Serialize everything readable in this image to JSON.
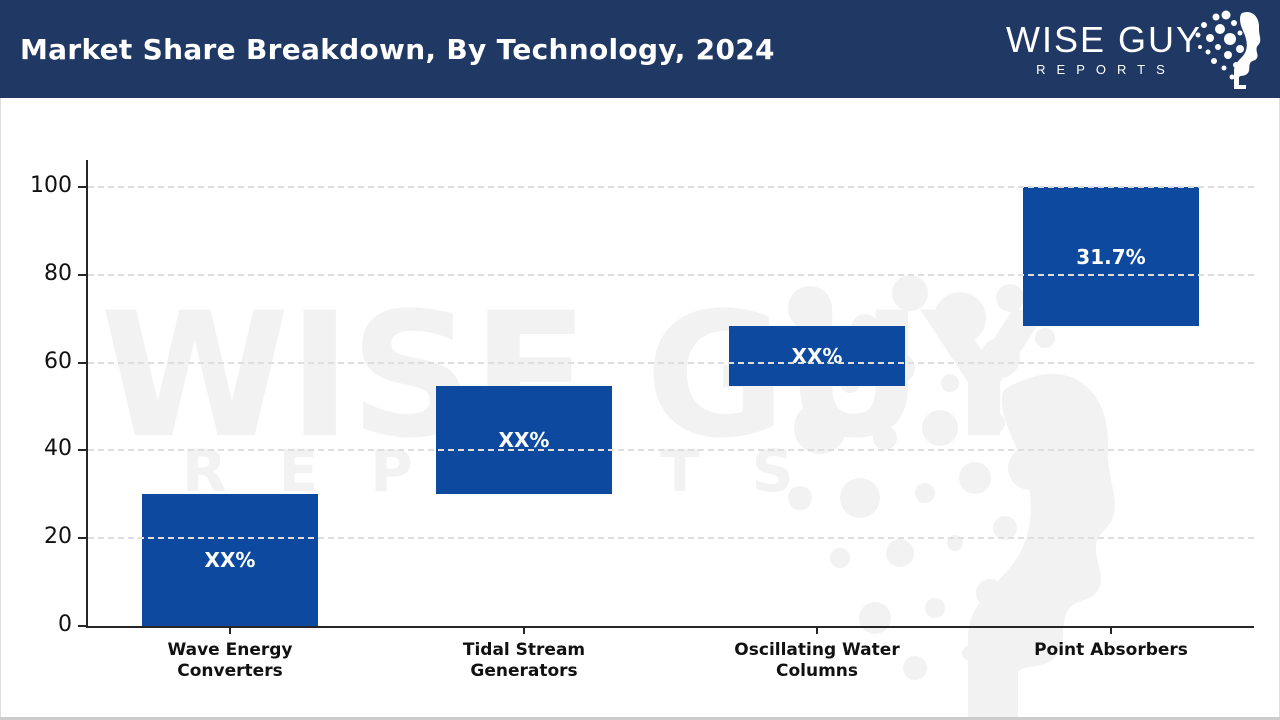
{
  "header": {
    "title": "Market Share Breakdown, By Technology, 2024",
    "bg_color": "#1f3864",
    "logo": {
      "line1": "WISE GUY",
      "line2": "REPORTS"
    }
  },
  "watermark": {
    "line1": "WISE GUY",
    "line2": "REPORTS"
  },
  "chart_data": {
    "type": "bar",
    "subtype": "waterfall",
    "title": "Market Share Breakdown, By Technology, 2024",
    "categories": [
      "Wave Energy Converters",
      "Tidal Stream Generators",
      "Oscillating Water Columns",
      "Point Absorbers"
    ],
    "bars": [
      {
        "category": "Wave Energy Converters",
        "label_lines": [
          "Wave Energy",
          "Converters"
        ],
        "start": 0,
        "end": 30,
        "value_label": "XX%"
      },
      {
        "category": "Tidal Stream Generators",
        "label_lines": [
          "Tidal Stream",
          "Generators"
        ],
        "start": 30,
        "end": 54.6,
        "value_label": "XX%"
      },
      {
        "category": "Oscillating Water Columns",
        "label_lines": [
          "Oscillating Water",
          "Columns"
        ],
        "start": 54.6,
        "end": 68.3,
        "value_label": "XX%"
      },
      {
        "category": "Point Absorbers",
        "label_lines": [
          "Point Absorbers"
        ],
        "start": 68.3,
        "end": 100,
        "value_label": "31.7%"
      }
    ],
    "yticks": [
      0,
      20,
      40,
      60,
      80,
      100
    ],
    "ylim": [
      0,
      106
    ],
    "xlabel": "",
    "ylabel": "",
    "bar_color": "#0d4a9f",
    "grid": "dashed-horizontal",
    "legend": "none"
  }
}
